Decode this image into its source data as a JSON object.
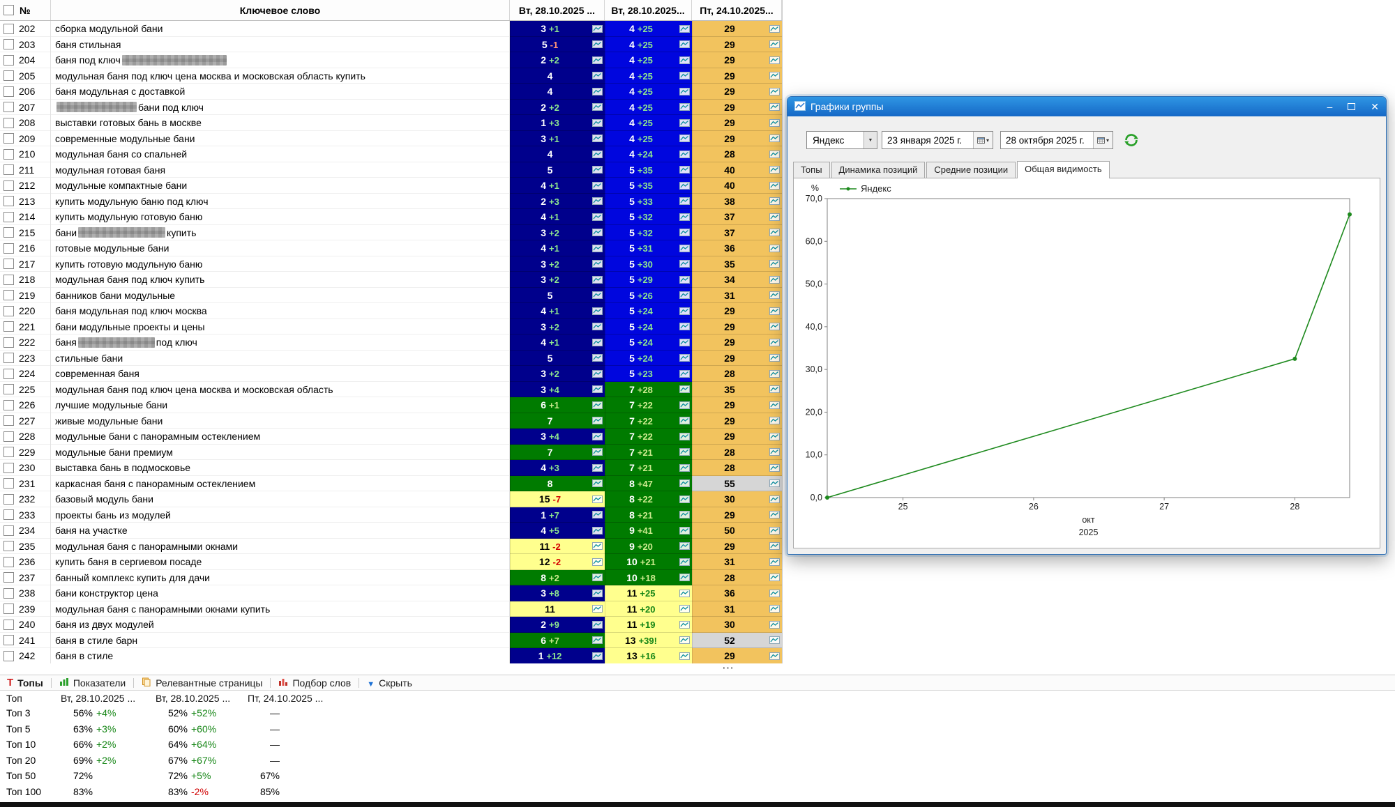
{
  "table": {
    "headers": {
      "num": "№",
      "keyword": "Ключевое слово",
      "col1": "Вт, 28.10.2025 ...",
      "col2": "Вт, 28.10.2025...",
      "col3": "Пт, 24.10.2025..."
    },
    "rows": [
      {
        "n": "202",
        "k": [
          "сборка модульной бани"
        ],
        "a": [
          "3",
          "+1",
          "n"
        ],
        "b": [
          "4",
          "+25",
          "b"
        ],
        "c": [
          "29",
          "o"
        ]
      },
      {
        "n": "203",
        "k": [
          "баня стильная"
        ],
        "a": [
          "5",
          "-1",
          "n"
        ],
        "b": [
          "4",
          "+25",
          "b"
        ],
        "c": [
          "29",
          "o"
        ]
      },
      {
        "n": "204",
        "k": [
          "баня под ключ ",
          {
            "r": 150
          }
        ],
        "a": [
          "2",
          "+2",
          "n"
        ],
        "b": [
          "4",
          "+25",
          "b"
        ],
        "c": [
          "29",
          "o"
        ]
      },
      {
        "n": "205",
        "k": [
          "модульная баня под ключ цена москва и московская область купить"
        ],
        "a": [
          "4",
          "",
          "n"
        ],
        "b": [
          "4",
          "+25",
          "b"
        ],
        "c": [
          "29",
          "o"
        ]
      },
      {
        "n": "206",
        "k": [
          "баня модульная с доставкой"
        ],
        "a": [
          "4",
          "",
          "n"
        ],
        "b": [
          "4",
          "+25",
          "b"
        ],
        "c": [
          "29",
          "o"
        ]
      },
      {
        "n": "207",
        "k": [
          {
            "r": 115
          },
          " бани под ключ"
        ],
        "a": [
          "2",
          "+2",
          "n"
        ],
        "b": [
          "4",
          "+25",
          "b"
        ],
        "c": [
          "29",
          "o"
        ]
      },
      {
        "n": "208",
        "k": [
          "выставки готовых бань в москве"
        ],
        "a": [
          "1",
          "+3",
          "n"
        ],
        "b": [
          "4",
          "+25",
          "b"
        ],
        "c": [
          "29",
          "o"
        ]
      },
      {
        "n": "209",
        "k": [
          "современные модульные бани"
        ],
        "a": [
          "3",
          "+1",
          "n"
        ],
        "b": [
          "4",
          "+25",
          "b"
        ],
        "c": [
          "29",
          "o"
        ]
      },
      {
        "n": "210",
        "k": [
          "модульная баня со спальней"
        ],
        "a": [
          "4",
          "",
          "n"
        ],
        "b": [
          "4",
          "+24",
          "b"
        ],
        "c": [
          "28",
          "o"
        ]
      },
      {
        "n": "211",
        "k": [
          "модульная готовая баня"
        ],
        "a": [
          "5",
          "",
          "n"
        ],
        "b": [
          "5",
          "+35",
          "b"
        ],
        "c": [
          "40",
          "o"
        ]
      },
      {
        "n": "212",
        "k": [
          "модульные компактные бани"
        ],
        "a": [
          "4",
          "+1",
          "n"
        ],
        "b": [
          "5",
          "+35",
          "b"
        ],
        "c": [
          "40",
          "o"
        ]
      },
      {
        "n": "213",
        "k": [
          "купить модульную баню под ключ"
        ],
        "a": [
          "2",
          "+3",
          "n"
        ],
        "b": [
          "5",
          "+33",
          "b"
        ],
        "c": [
          "38",
          "o"
        ]
      },
      {
        "n": "214",
        "k": [
          "купить модульную готовую баню"
        ],
        "a": [
          "4",
          "+1",
          "n"
        ],
        "b": [
          "5",
          "+32",
          "b"
        ],
        "c": [
          "37",
          "o"
        ]
      },
      {
        "n": "215",
        "k": [
          "бани ",
          {
            "r": 125
          },
          " купить"
        ],
        "a": [
          "3",
          "+2",
          "n"
        ],
        "b": [
          "5",
          "+32",
          "b"
        ],
        "c": [
          "37",
          "o"
        ]
      },
      {
        "n": "216",
        "k": [
          "готовые модульные бани"
        ],
        "a": [
          "4",
          "+1",
          "n"
        ],
        "b": [
          "5",
          "+31",
          "b"
        ],
        "c": [
          "36",
          "o"
        ]
      },
      {
        "n": "217",
        "k": [
          "купить готовую модульную баню"
        ],
        "a": [
          "3",
          "+2",
          "n"
        ],
        "b": [
          "5",
          "+30",
          "b"
        ],
        "c": [
          "35",
          "o"
        ]
      },
      {
        "n": "218",
        "k": [
          "модульная баня под ключ купить"
        ],
        "a": [
          "3",
          "+2",
          "n"
        ],
        "b": [
          "5",
          "+29",
          "b"
        ],
        "c": [
          "34",
          "o"
        ]
      },
      {
        "n": "219",
        "k": [
          "банников бани модульные"
        ],
        "a": [
          "5",
          "",
          "n"
        ],
        "b": [
          "5",
          "+26",
          "b"
        ],
        "c": [
          "31",
          "o"
        ]
      },
      {
        "n": "220",
        "k": [
          "баня модульная под ключ москва"
        ],
        "a": [
          "4",
          "+1",
          "n"
        ],
        "b": [
          "5",
          "+24",
          "b"
        ],
        "c": [
          "29",
          "o"
        ]
      },
      {
        "n": "221",
        "k": [
          "бани модульные проекты и цены"
        ],
        "a": [
          "3",
          "+2",
          "n"
        ],
        "b": [
          "5",
          "+24",
          "b"
        ],
        "c": [
          "29",
          "o"
        ]
      },
      {
        "n": "222",
        "k": [
          "баня ",
          {
            "r": 110
          },
          " под ключ"
        ],
        "a": [
          "4",
          "+1",
          "n"
        ],
        "b": [
          "5",
          "+24",
          "b"
        ],
        "c": [
          "29",
          "o"
        ]
      },
      {
        "n": "223",
        "k": [
          "стильные бани"
        ],
        "a": [
          "5",
          "",
          "n"
        ],
        "b": [
          "5",
          "+24",
          "b"
        ],
        "c": [
          "29",
          "o"
        ]
      },
      {
        "n": "224",
        "k": [
          "современная баня"
        ],
        "a": [
          "3",
          "+2",
          "n"
        ],
        "b": [
          "5",
          "+23",
          "b"
        ],
        "c": [
          "28",
          "o"
        ]
      },
      {
        "n": "225",
        "k": [
          "модульная баня под ключ цена москва и московская область"
        ],
        "a": [
          "3",
          "+4",
          "n"
        ],
        "b": [
          "7",
          "+28",
          "g"
        ],
        "c": [
          "35",
          "o"
        ]
      },
      {
        "n": "226",
        "k": [
          "лучшие модульные бани"
        ],
        "a": [
          "6",
          "+1",
          "g"
        ],
        "b": [
          "7",
          "+22",
          "g"
        ],
        "c": [
          "29",
          "o"
        ]
      },
      {
        "n": "227",
        "k": [
          "живые модульные бани"
        ],
        "a": [
          "7",
          "",
          "g"
        ],
        "b": [
          "7",
          "+22",
          "g"
        ],
        "c": [
          "29",
          "o"
        ]
      },
      {
        "n": "228",
        "k": [
          "модульные бани с панорамным остеклением"
        ],
        "a": [
          "3",
          "+4",
          "n"
        ],
        "b": [
          "7",
          "+22",
          "g"
        ],
        "c": [
          "29",
          "o"
        ]
      },
      {
        "n": "229",
        "k": [
          "модульные бани премиум"
        ],
        "a": [
          "7",
          "",
          "g"
        ],
        "b": [
          "7",
          "+21",
          "g"
        ],
        "c": [
          "28",
          "o"
        ]
      },
      {
        "n": "230",
        "k": [
          "выставка бань в подмосковье"
        ],
        "a": [
          "4",
          "+3",
          "n"
        ],
        "b": [
          "7",
          "+21",
          "g"
        ],
        "c": [
          "28",
          "o"
        ]
      },
      {
        "n": "231",
        "k": [
          "каркасная баня с панорамным остеклением"
        ],
        "a": [
          "8",
          "",
          "g"
        ],
        "b": [
          "8",
          "+47",
          "g"
        ],
        "c": [
          "55",
          "gr"
        ]
      },
      {
        "n": "232",
        "k": [
          "базовый модуль бани"
        ],
        "a": [
          "15",
          "-7",
          "y"
        ],
        "b": [
          "8",
          "+22",
          "g"
        ],
        "c": [
          "30",
          "o"
        ]
      },
      {
        "n": "233",
        "k": [
          "проекты бань из модулей"
        ],
        "a": [
          "1",
          "+7",
          "n"
        ],
        "b": [
          "8",
          "+21",
          "g"
        ],
        "c": [
          "29",
          "o"
        ]
      },
      {
        "n": "234",
        "k": [
          "баня на участке"
        ],
        "a": [
          "4",
          "+5",
          "n"
        ],
        "b": [
          "9",
          "+41",
          "g"
        ],
        "c": [
          "50",
          "o"
        ]
      },
      {
        "n": "235",
        "k": [
          "модульная баня с панорамными окнами"
        ],
        "a": [
          "11",
          "-2",
          "y"
        ],
        "b": [
          "9",
          "+20",
          "g"
        ],
        "c": [
          "29",
          "o"
        ]
      },
      {
        "n": "236",
        "k": [
          "купить баня в сергиевом посаде"
        ],
        "a": [
          "12",
          "-2",
          "y"
        ],
        "b": [
          "10",
          "+21",
          "g"
        ],
        "c": [
          "31",
          "o"
        ]
      },
      {
        "n": "237",
        "k": [
          "банный комплекс купить для дачи"
        ],
        "a": [
          "8",
          "+2",
          "g"
        ],
        "b": [
          "10",
          "+18",
          "g"
        ],
        "c": [
          "28",
          "o"
        ]
      },
      {
        "n": "238",
        "k": [
          "бани конструктор цена"
        ],
        "a": [
          "3",
          "+8",
          "n"
        ],
        "b": [
          "11",
          "+25",
          "y"
        ],
        "c": [
          "36",
          "o"
        ]
      },
      {
        "n": "239",
        "k": [
          "модульная баня с панорамными окнами купить"
        ],
        "a": [
          "11",
          "",
          "y"
        ],
        "b": [
          "11",
          "+20",
          "y"
        ],
        "c": [
          "31",
          "o"
        ]
      },
      {
        "n": "240",
        "k": [
          "баня из двух модулей"
        ],
        "a": [
          "2",
          "+9",
          "n"
        ],
        "b": [
          "11",
          "+19",
          "y"
        ],
        "c": [
          "30",
          "o"
        ]
      },
      {
        "n": "241",
        "k": [
          "баня в стиле барн"
        ],
        "a": [
          "6",
          "+7",
          "g"
        ],
        "b": [
          "13",
          "+39!",
          "y"
        ],
        "c": [
          "52",
          "gr"
        ]
      },
      {
        "n": "242",
        "k": [
          "баня в стиле"
        ],
        "a": [
          "1",
          "+12",
          "n"
        ],
        "b": [
          "13",
          "+16",
          "y"
        ],
        "c": [
          "29",
          "o"
        ]
      }
    ]
  },
  "ui": {
    "splitter_dots": "⋯"
  },
  "bottom_tabs": {
    "items": [
      {
        "key": "tops",
        "label": "Топы",
        "icon": "tops-icon",
        "active": true
      },
      {
        "key": "metrics",
        "label": "Показатели",
        "icon": "metrics-icon",
        "active": false
      },
      {
        "key": "relevant-pages",
        "label": "Релевантные страницы",
        "icon": "pages-icon",
        "active": false
      },
      {
        "key": "word-picker",
        "label": "Подбор слов",
        "icon": "words-icon",
        "active": false
      },
      {
        "key": "hide",
        "label": "Скрыть",
        "icon": "hide-icon",
        "active": false
      }
    ]
  },
  "tops": {
    "headers": [
      "Топ",
      "Вт, 28.10.2025 ...",
      "Вт, 28.10.2025 ...",
      "Пт, 24.10.2025 ..."
    ],
    "rows": [
      {
        "label": "Топ 3",
        "cells": [
          [
            "56%",
            "+4%"
          ],
          [
            "52%",
            "+52%"
          ],
          [
            "—",
            ""
          ]
        ]
      },
      {
        "label": "Топ 5",
        "cells": [
          [
            "63%",
            "+3%"
          ],
          [
            "60%",
            "+60%"
          ],
          [
            "—",
            ""
          ]
        ]
      },
      {
        "label": "Топ 10",
        "cells": [
          [
            "66%",
            "+2%"
          ],
          [
            "64%",
            "+64%"
          ],
          [
            "—",
            ""
          ]
        ]
      },
      {
        "label": "Топ 20",
        "cells": [
          [
            "69%",
            "+2%"
          ],
          [
            "67%",
            "+67%"
          ],
          [
            "—",
            ""
          ]
        ]
      },
      {
        "label": "Топ 50",
        "cells": [
          [
            "72%",
            ""
          ],
          [
            "72%",
            "+5%"
          ],
          [
            "67%",
            ""
          ]
        ]
      },
      {
        "label": "Топ 100",
        "cells": [
          [
            "83%",
            ""
          ],
          [
            "83%",
            "-2%"
          ],
          [
            "85%",
            ""
          ]
        ]
      }
    ]
  },
  "window": {
    "title": "Графики группы",
    "engine_select": {
      "value": "Яндекс"
    },
    "date_from": "23 января 2025 г.",
    "date_to": "28 октября 2025 г.",
    "tabs": [
      "Топы",
      "Динамика позиций",
      "Средние позиции",
      "Общая видимость"
    ],
    "active_tab": "Общая видимость"
  },
  "chart_data": {
    "type": "line",
    "title": "Общая видимость",
    "ylabel": "%",
    "ylim": [
      0,
      70
    ],
    "yticks": [
      "0,0",
      "10,0",
      "20,0",
      "30,0",
      "40,0",
      "50,0",
      "60,0",
      "70,0"
    ],
    "xlim": [
      24.42,
      28.42
    ],
    "xticks": [
      25,
      26,
      27,
      28
    ],
    "xlabel_month": "окт",
    "xlabel_year": "2025",
    "legend_position": "top-left",
    "grid": false,
    "series": [
      {
        "name": "Яндекс",
        "color": "#1E8A1E",
        "points": [
          [
            24.42,
            0.0
          ],
          [
            28.0,
            32.5
          ],
          [
            28.42,
            66.3
          ]
        ]
      }
    ]
  }
}
